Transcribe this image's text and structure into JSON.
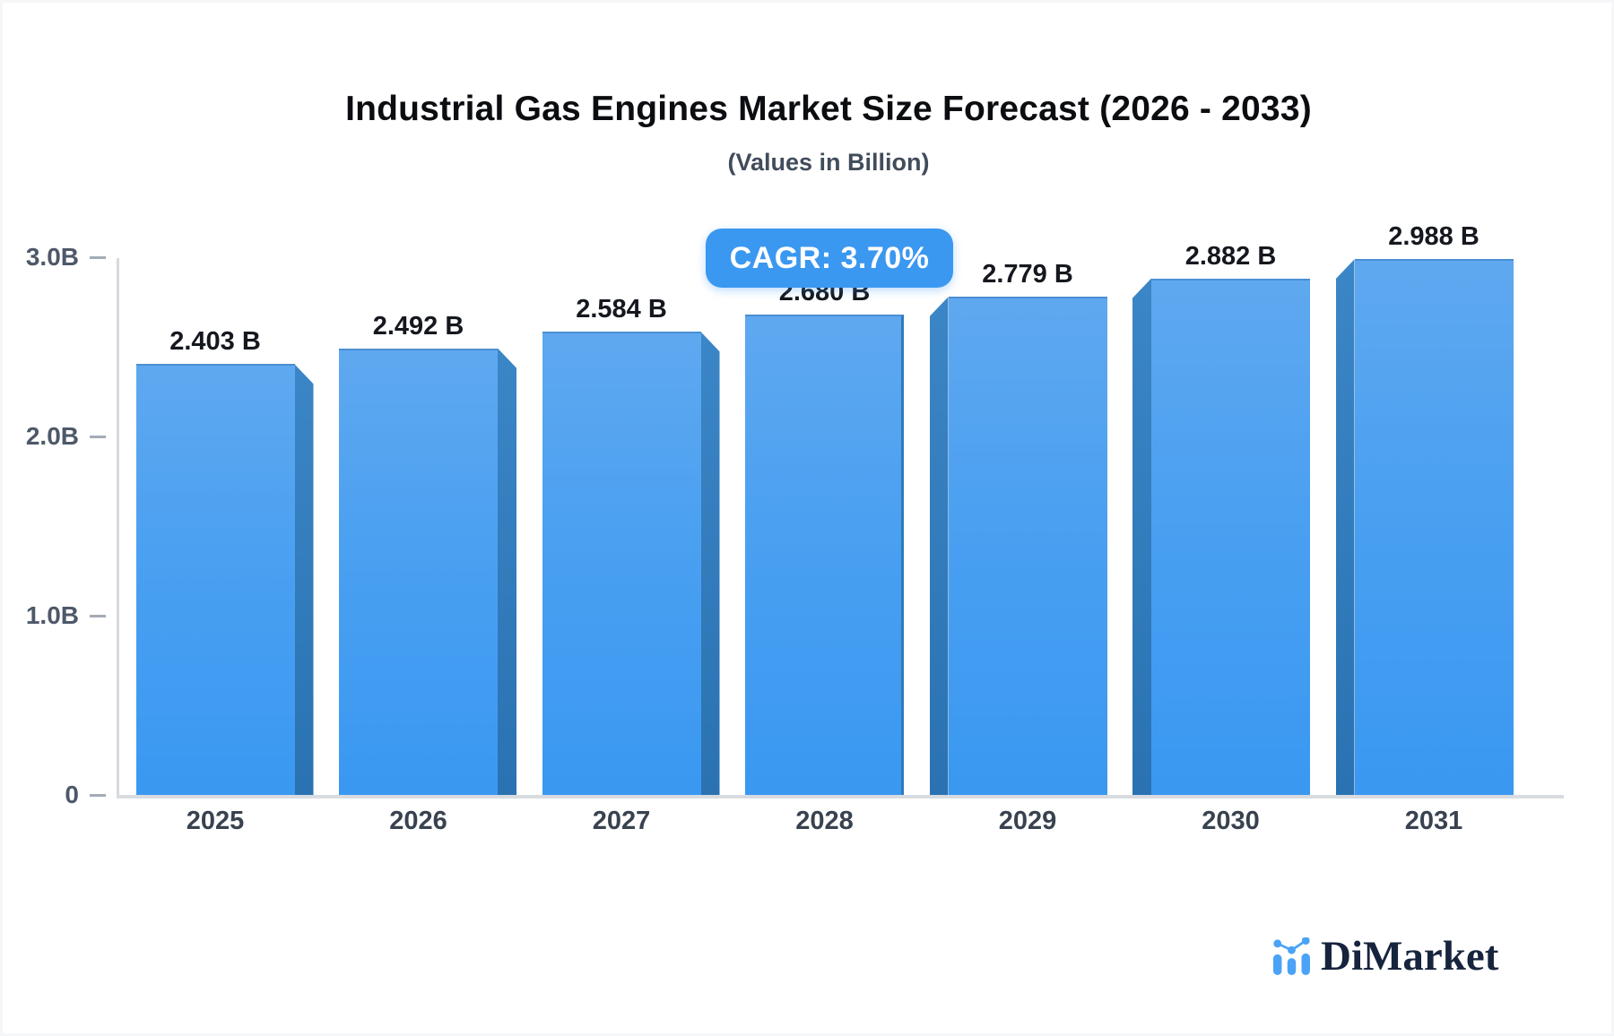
{
  "header": {
    "title": "Industrial Gas Engines Market Size Forecast (2026 - 2033)",
    "subtitle": "(Values in Billion)"
  },
  "badge": {
    "label": "CAGR: 3.70%"
  },
  "logo": {
    "text": "DiMarket",
    "icon": "mini-bar-chart-icon"
  },
  "chart_data": {
    "type": "bar",
    "title": "Industrial Gas Engines Market Size Forecast (2026 - 2033)",
    "subtitle": "(Values in Billion)",
    "categories": [
      "2025",
      "2026",
      "2027",
      "2028",
      "2029",
      "2030",
      "2031"
    ],
    "values": [
      2.403,
      2.492,
      2.584,
      2.68,
      2.779,
      2.882,
      2.988
    ],
    "value_labels": [
      "2.403 B",
      "2.492 B",
      "2.584 B",
      "2.680 B",
      "2.779 B",
      "2.882 B",
      "2.988 B"
    ],
    "unit": "Billion",
    "ylim": [
      0,
      3.0
    ],
    "yticks": [
      {
        "value": 0.0,
        "label": "0"
      },
      {
        "value": 1.0,
        "label": "1.0B"
      },
      {
        "value": 2.0,
        "label": "2.0B"
      },
      {
        "value": 3.0,
        "label": "3.0B"
      }
    ],
    "grid": "off",
    "legend": "none",
    "annotation": "CAGR: 3.70%",
    "bar_3d_sides": [
      "right",
      "right",
      "right",
      "none",
      "left",
      "left",
      "left"
    ]
  },
  "colors": {
    "bar_face_top": "#5fa8f0",
    "bar_face_bottom": "#3a98f1",
    "bar_side": "#2a72b2",
    "badge_bg": "#3b98f0",
    "axis": "#d6dae0",
    "tick_text": "#4d5869",
    "category_text": "#39424f",
    "value_text": "#15181e",
    "title_text": "#0b0d11",
    "logo_text": "#16243d",
    "logo_icon": "#4aa3f6"
  }
}
